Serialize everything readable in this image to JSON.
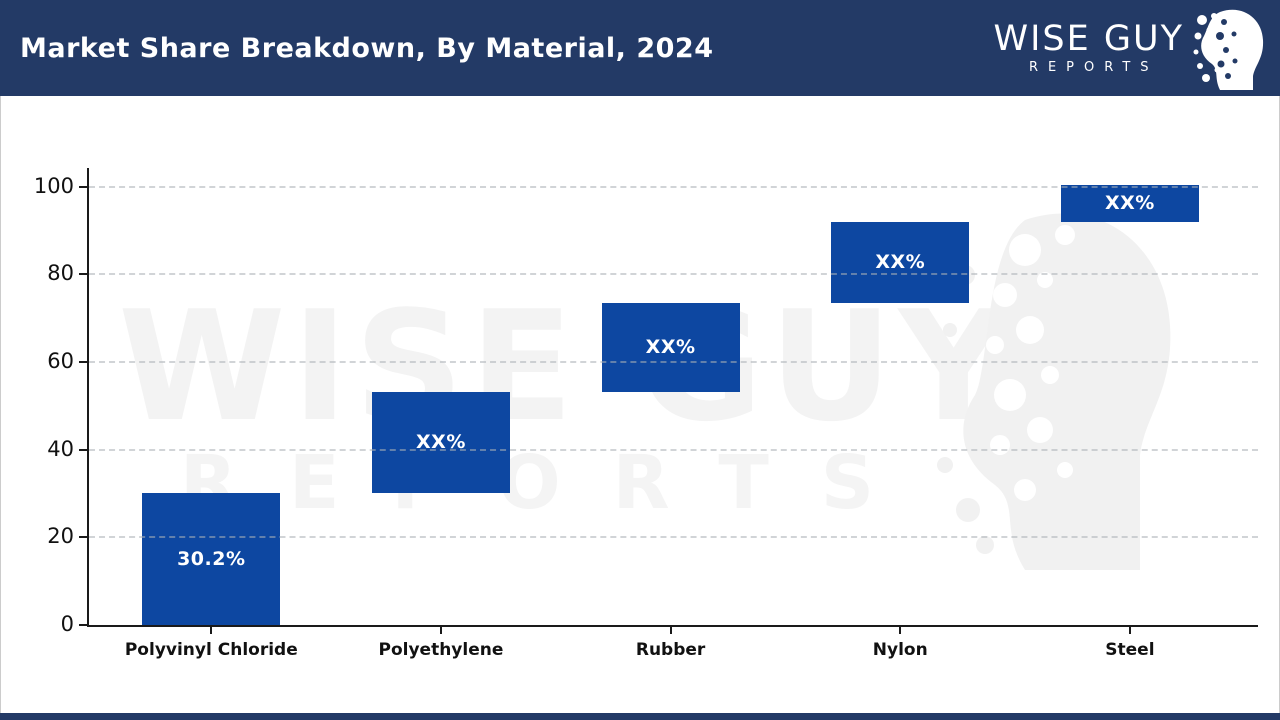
{
  "header": {
    "title": "Market Share Breakdown, By Material, 2024",
    "logo_line1": "WISE GUY",
    "logo_line2": "REPORTS"
  },
  "watermark": {
    "line1": "WISE GUY",
    "line2": "REPORTS"
  },
  "colors": {
    "header_navy": "#233a66",
    "bar_blue": "#0d47a1",
    "bar_label_white": "#ffffff",
    "gridline_gray": "#aab0b7",
    "watermark_gray": "#f3f3f3"
  },
  "chart_data": {
    "type": "bar",
    "subtype": "waterfall",
    "title": "Market Share Breakdown, By Material, 2024",
    "xlabel": "",
    "ylabel": "",
    "categories": [
      "Polyvinyl Chloride",
      "Polyethylene",
      "Rubber",
      "Nylon",
      "Steel"
    ],
    "segments": [
      {
        "category": "Polyvinyl Chloride",
        "start": 0,
        "end": 30.2,
        "value": 30.2,
        "label": "30.2%"
      },
      {
        "category": "Polyethylene",
        "start": 30.2,
        "end": 53.2,
        "value": 23.0,
        "label": "XX%"
      },
      {
        "category": "Rubber",
        "start": 53.2,
        "end": 73.5,
        "value": 20.3,
        "label": "XX%"
      },
      {
        "category": "Nylon",
        "start": 73.5,
        "end": 92.0,
        "value": 18.5,
        "label": "XX%"
      },
      {
        "category": "Steel",
        "start": 92.0,
        "end": 100.3,
        "value": 8.3,
        "label": "XX%"
      }
    ],
    "yticks": [
      0,
      20,
      40,
      60,
      80,
      100
    ],
    "ylim": [
      0,
      104
    ],
    "grid": true,
    "grid_style": "dashed",
    "legend": "none",
    "bar_color": "#0d47a1"
  }
}
